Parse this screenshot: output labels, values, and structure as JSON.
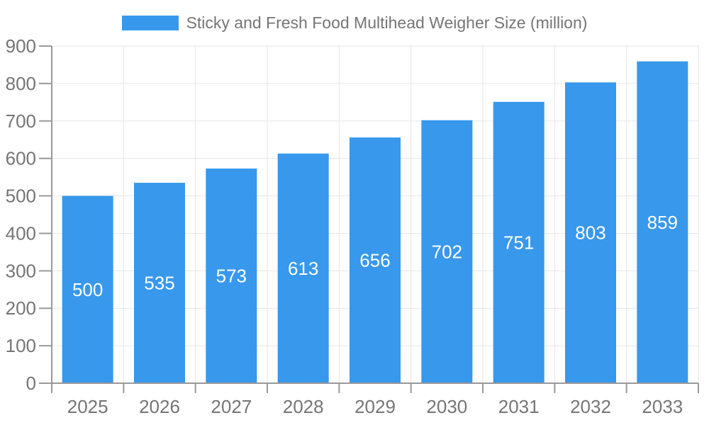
{
  "chart_data": {
    "type": "bar",
    "title": "Sticky and Fresh Food Multihead Weigher Size (million)",
    "categories": [
      "2025",
      "2026",
      "2027",
      "2028",
      "2029",
      "2030",
      "2031",
      "2032",
      "2033"
    ],
    "values": [
      500,
      535,
      573,
      613,
      656,
      702,
      751,
      803,
      859
    ],
    "xlabel": "",
    "ylabel": "",
    "ylim": [
      0,
      900
    ],
    "ytick_step": 100,
    "yticks": [
      0,
      100,
      200,
      300,
      400,
      500,
      600,
      700,
      800,
      900
    ],
    "grid": true,
    "legend_position": "top-center",
    "value_labels": "inside-center",
    "colors": {
      "bar": "#3898EC",
      "text": "#757575",
      "axis": "#999999",
      "gridline": "#E6E6E6",
      "value_label": "#FFFFFF",
      "background": "#FFFFFF"
    }
  }
}
